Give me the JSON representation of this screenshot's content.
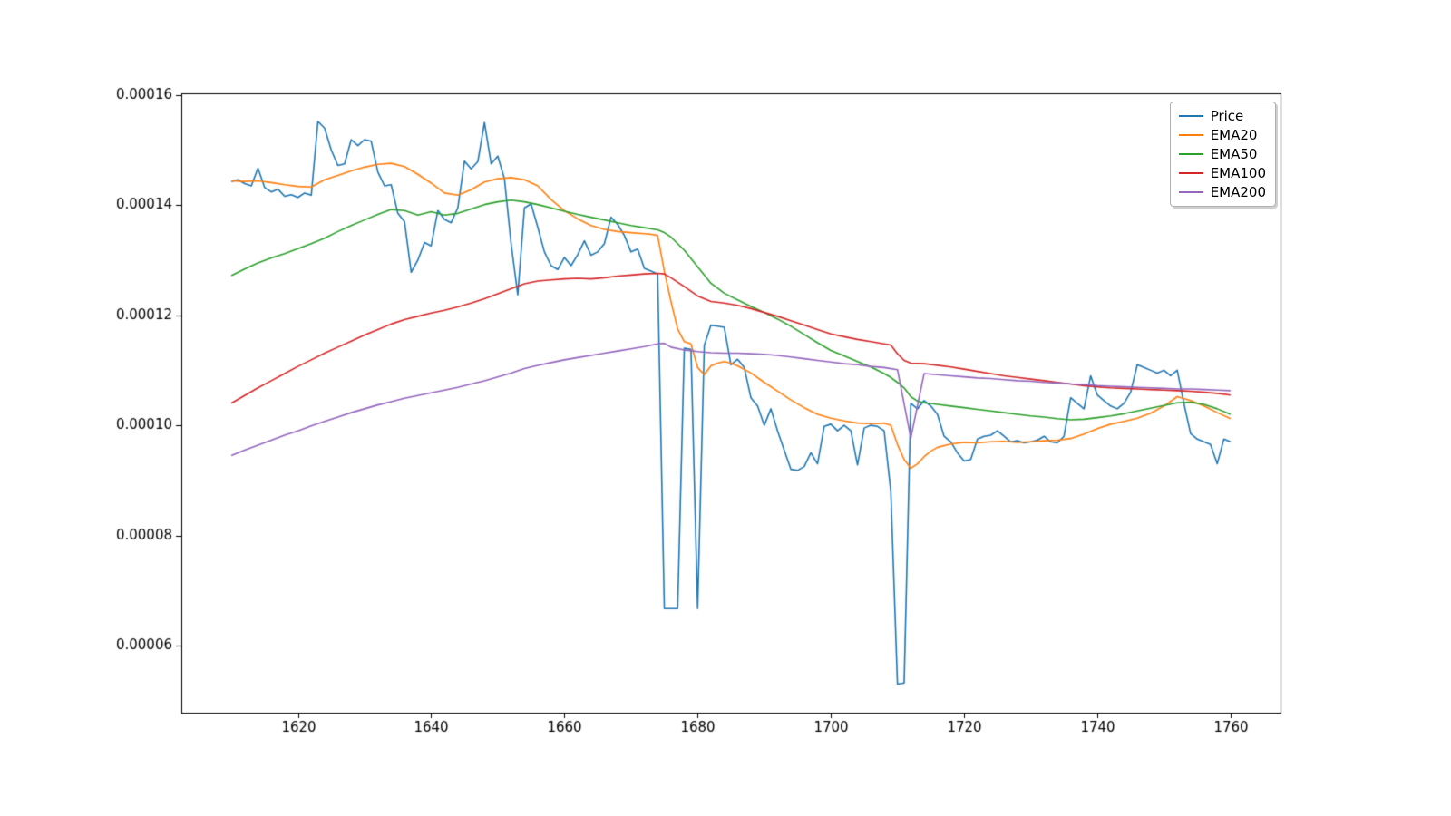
{
  "figure": {
    "background": "#ffffff",
    "text_color": "#000000"
  },
  "chart_data": {
    "type": "line",
    "title": "",
    "xlabel": "",
    "ylabel": "",
    "grid": false,
    "xlim": [
      1602.5,
      1767.5
    ],
    "ylim": [
      4.78e-05,
      0.0001603
    ],
    "x_ticks": [
      1620,
      1640,
      1660,
      1680,
      1700,
      1720,
      1740,
      1760
    ],
    "x_tick_labels": [
      "1620",
      "1640",
      "1660",
      "1680",
      "1700",
      "1720",
      "1740",
      "1760"
    ],
    "y_ticks": [
      6e-05,
      8e-05,
      0.0001,
      0.00012,
      0.00014,
      0.00016
    ],
    "y_tick_labels": [
      "0.00006",
      "0.00008",
      "0.00010",
      "0.00012",
      "0.00014",
      "0.00016"
    ],
    "legend": {
      "position": "upper-right",
      "entries": [
        "Price",
        "EMA20",
        "EMA50",
        "EMA100",
        "EMA200"
      ]
    },
    "series": [
      {
        "name": "Price",
        "color": "#1f77b4",
        "x_range": [
          1610,
          1760,
          1
        ],
        "y": [
          0.0001443,
          0.0001446,
          0.0001439,
          0.0001435,
          0.0001467,
          0.0001432,
          0.0001424,
          0.0001429,
          0.0001416,
          0.0001419,
          0.0001414,
          0.0001422,
          0.0001418,
          0.0001552,
          0.000154,
          0.00015,
          0.0001472,
          0.0001475,
          0.0001519,
          0.0001508,
          0.0001519,
          0.0001516,
          0.000146,
          0.0001435,
          0.0001437,
          0.0001385,
          0.000137,
          0.0001278,
          0.00013,
          0.0001332,
          0.0001326,
          0.000139,
          0.0001374,
          0.0001368,
          0.0001395,
          0.000148,
          0.0001466,
          0.0001479,
          0.000155,
          0.0001475,
          0.0001489,
          0.0001448,
          0.000133,
          0.0001237,
          0.0001395,
          0.0001402,
          0.000136,
          0.0001315,
          0.000129,
          0.0001283,
          0.0001305,
          0.000129,
          0.000131,
          0.0001335,
          0.0001309,
          0.0001315,
          0.000133,
          0.0001378,
          0.0001365,
          0.0001345,
          0.0001315,
          0.000132,
          0.0001285,
          0.000128,
          0.0001275,
          6.67e-05,
          6.67e-05,
          6.67e-05,
          0.000114,
          0.0001138,
          6.67e-05,
          0.0001145,
          0.0001182,
          0.000118,
          0.0001178,
          0.000111,
          0.000112,
          0.0001105,
          0.000105,
          0.0001035,
          0.0001,
          0.000103,
          9.9e-05,
          9.55e-05,
          9.2e-05,
          9.18e-05,
          9.25e-05,
          9.5e-05,
          9.3e-05,
          9.98e-05,
          0.0001002,
          9.9e-05,
          0.0001,
          9.9e-05,
          9.28e-05,
          9.95e-05,
          0.0001,
          9.98e-05,
          9.9e-05,
          8.8e-05,
          5.3e-05,
          5.32e-05,
          0.000104,
          0.000103,
          0.0001045,
          0.0001035,
          0.000102,
          9.8e-05,
          9.7e-05,
          9.5e-05,
          9.35e-05,
          9.38e-05,
          9.75e-05,
          9.8e-05,
          9.82e-05,
          9.9e-05,
          9.8e-05,
          9.7e-05,
          9.72e-05,
          9.68e-05,
          9.7e-05,
          9.73e-05,
          9.8e-05,
          9.7e-05,
          9.68e-05,
          9.8e-05,
          0.000105,
          0.000104,
          0.000103,
          0.000109,
          0.0001055,
          0.0001045,
          0.0001035,
          0.000103,
          0.000104,
          0.000106,
          0.000111,
          0.0001105,
          0.00011,
          0.0001095,
          0.00011,
          0.000109,
          0.00011,
          0.000104,
          9.85e-05,
          9.75e-05,
          9.7e-05,
          9.65e-05,
          9.3e-05,
          9.75e-05,
          9.7e-05
        ]
      },
      {
        "name": "EMA20",
        "color": "#ff7f0e",
        "x": [
          1610,
          1612,
          1614,
          1616,
          1618,
          1620,
          1622,
          1624,
          1626,
          1628,
          1630,
          1632,
          1634,
          1636,
          1638,
          1640,
          1642,
          1644,
          1646,
          1648,
          1650,
          1652,
          1654,
          1656,
          1658,
          1660,
          1662,
          1664,
          1666,
          1668,
          1670,
          1672,
          1673,
          1674,
          1675,
          1676,
          1677,
          1678,
          1679,
          1680,
          1681,
          1682,
          1683,
          1684,
          1685,
          1686,
          1688,
          1690,
          1692,
          1694,
          1696,
          1698,
          1700,
          1702,
          1704,
          1706,
          1707,
          1708,
          1709,
          1710,
          1711,
          1712,
          1713,
          1714,
          1715,
          1716,
          1718,
          1720,
          1722,
          1724,
          1726,
          1728,
          1730,
          1732,
          1734,
          1736,
          1738,
          1740,
          1742,
          1744,
          1746,
          1748,
          1750,
          1752,
          1754,
          1756,
          1758,
          1760
        ],
        "y": [
          0.0001444,
          0.0001443,
          0.0001444,
          0.0001441,
          0.0001437,
          0.0001434,
          0.0001433,
          0.0001446,
          0.0001454,
          0.0001462,
          0.0001469,
          0.0001474,
          0.0001476,
          0.000147,
          0.0001456,
          0.000144,
          0.0001422,
          0.0001418,
          0.0001428,
          0.0001442,
          0.0001448,
          0.000145,
          0.0001446,
          0.0001435,
          0.000141,
          0.000139,
          0.0001375,
          0.0001363,
          0.0001356,
          0.0001352,
          0.000135,
          0.0001348,
          0.0001347,
          0.0001345,
          0.000128,
          0.0001225,
          0.0001175,
          0.0001152,
          0.0001148,
          0.0001105,
          0.0001092,
          0.0001108,
          0.0001113,
          0.0001116,
          0.0001113,
          0.0001108,
          0.0001095,
          0.0001078,
          0.0001062,
          0.0001046,
          0.0001032,
          0.000102,
          0.0001013,
          0.0001008,
          0.0001004,
          0.0001003,
          0.0001003,
          0.0001004,
          0.0001,
          9.65e-05,
          9.38e-05,
          9.22e-05,
          9.3e-05,
          9.43e-05,
          9.53e-05,
          9.6e-05,
          9.66e-05,
          9.69e-05,
          9.68e-05,
          9.7e-05,
          9.71e-05,
          9.69e-05,
          9.7e-05,
          9.72e-05,
          9.73e-05,
          9.76e-05,
          9.84e-05,
          9.94e-05,
          0.0001002,
          0.0001007,
          0.0001013,
          0.0001022,
          0.0001035,
          0.0001052,
          0.0001045,
          0.0001035,
          0.0001023,
          0.0001012
        ]
      },
      {
        "name": "EMA50",
        "color": "#2ca02c",
        "x": [
          1610,
          1612,
          1614,
          1616,
          1618,
          1620,
          1622,
          1624,
          1626,
          1628,
          1630,
          1632,
          1634,
          1636,
          1638,
          1640,
          1642,
          1644,
          1646,
          1648,
          1650,
          1652,
          1654,
          1656,
          1658,
          1660,
          1662,
          1664,
          1666,
          1668,
          1670,
          1672,
          1674,
          1675,
          1676,
          1678,
          1680,
          1682,
          1684,
          1686,
          1688,
          1690,
          1692,
          1694,
          1696,
          1698,
          1700,
          1702,
          1704,
          1706,
          1708,
          1709,
          1710,
          1711,
          1712,
          1713,
          1714,
          1716,
          1718,
          1720,
          1722,
          1724,
          1726,
          1728,
          1730,
          1732,
          1734,
          1736,
          1738,
          1740,
          1742,
          1744,
          1746,
          1748,
          1750,
          1752,
          1754,
          1756,
          1758,
          1760
        ],
        "y": [
          0.0001272,
          0.0001284,
          0.0001295,
          0.0001304,
          0.0001312,
          0.0001321,
          0.000133,
          0.000134,
          0.0001352,
          0.0001363,
          0.0001373,
          0.0001383,
          0.0001392,
          0.000139,
          0.0001382,
          0.0001388,
          0.0001382,
          0.0001385,
          0.0001393,
          0.0001401,
          0.0001406,
          0.0001409,
          0.0001406,
          0.0001401,
          0.0001395,
          0.0001389,
          0.0001383,
          0.0001378,
          0.0001373,
          0.0001368,
          0.0001363,
          0.0001359,
          0.0001355,
          0.000135,
          0.0001342,
          0.0001318,
          0.0001288,
          0.0001258,
          0.000124,
          0.0001228,
          0.0001216,
          0.0001205,
          0.0001193,
          0.000118,
          0.0001165,
          0.000115,
          0.0001136,
          0.0001126,
          0.0001116,
          0.0001106,
          0.0001094,
          0.0001087,
          0.0001078,
          0.0001068,
          0.0001052,
          0.0001044,
          0.0001041,
          0.0001038,
          0.0001035,
          0.0001032,
          0.0001029,
          0.0001026,
          0.0001023,
          0.000102,
          0.0001017,
          0.0001015,
          0.0001012,
          0.000101,
          0.0001011,
          0.0001014,
          0.0001017,
          0.0001021,
          0.0001026,
          0.0001031,
          0.0001036,
          0.0001041,
          0.0001042,
          0.0001038,
          0.000103,
          0.000102
        ]
      },
      {
        "name": "EMA100",
        "color": "#d62728",
        "x": [
          1610,
          1612,
          1614,
          1616,
          1618,
          1620,
          1622,
          1624,
          1626,
          1628,
          1630,
          1632,
          1634,
          1636,
          1638,
          1640,
          1642,
          1644,
          1646,
          1648,
          1650,
          1652,
          1654,
          1656,
          1658,
          1660,
          1662,
          1664,
          1666,
          1668,
          1670,
          1672,
          1674,
          1675,
          1676,
          1678,
          1680,
          1682,
          1684,
          1686,
          1688,
          1690,
          1692,
          1694,
          1696,
          1698,
          1700,
          1702,
          1704,
          1706,
          1708,
          1709,
          1710,
          1711,
          1712,
          1714,
          1716,
          1718,
          1720,
          1722,
          1724,
          1726,
          1728,
          1730,
          1732,
          1734,
          1736,
          1738,
          1740,
          1742,
          1744,
          1746,
          1748,
          1750,
          1752,
          1754,
          1756,
          1758,
          1760
        ],
        "y": [
          0.000104,
          0.0001054,
          0.0001068,
          0.0001081,
          0.0001094,
          0.0001107,
          0.0001119,
          0.0001131,
          0.0001142,
          0.0001153,
          0.0001164,
          0.0001174,
          0.0001184,
          0.0001192,
          0.0001198,
          0.0001204,
          0.0001209,
          0.0001215,
          0.0001222,
          0.000123,
          0.0001239,
          0.0001248,
          0.0001257,
          0.0001262,
          0.0001264,
          0.0001266,
          0.0001267,
          0.0001266,
          0.0001268,
          0.0001271,
          0.0001273,
          0.0001275,
          0.0001276,
          0.0001275,
          0.0001268,
          0.0001252,
          0.0001235,
          0.0001225,
          0.0001222,
          0.0001218,
          0.0001212,
          0.0001205,
          0.0001198,
          0.000119,
          0.0001182,
          0.0001174,
          0.0001166,
          0.0001161,
          0.0001156,
          0.0001152,
          0.0001148,
          0.0001146,
          0.000113,
          0.0001118,
          0.0001113,
          0.0001112,
          0.0001109,
          0.0001106,
          0.0001102,
          0.0001098,
          0.0001094,
          0.000109,
          0.0001087,
          0.0001084,
          0.0001081,
          0.0001078,
          0.0001075,
          0.0001072,
          0.000107,
          0.0001068,
          0.0001067,
          0.0001066,
          0.0001065,
          0.0001064,
          0.0001063,
          0.0001062,
          0.000106,
          0.0001058,
          0.0001055
        ]
      },
      {
        "name": "EMA200",
        "color": "#9467bd",
        "x": [
          1610,
          1612,
          1614,
          1616,
          1618,
          1620,
          1622,
          1624,
          1626,
          1628,
          1630,
          1632,
          1634,
          1636,
          1638,
          1640,
          1642,
          1644,
          1646,
          1648,
          1650,
          1652,
          1654,
          1656,
          1658,
          1660,
          1662,
          1664,
          1666,
          1668,
          1670,
          1672,
          1674,
          1675,
          1676,
          1678,
          1680,
          1682,
          1684,
          1686,
          1688,
          1690,
          1692,
          1694,
          1696,
          1698,
          1700,
          1702,
          1704,
          1706,
          1708,
          1710,
          1712,
          1714,
          1716,
          1718,
          1720,
          1722,
          1724,
          1726,
          1728,
          1730,
          1732,
          1734,
          1736,
          1738,
          1740,
          1742,
          1744,
          1746,
          1748,
          1750,
          1752,
          1754,
          1756,
          1758,
          1760
        ],
        "y": [
          9.45e-05,
          9.55e-05,
          9.64e-05,
          9.73e-05,
          9.82e-05,
          9.9e-05,
          9.99e-05,
          0.0001007,
          0.0001015,
          0.0001023,
          0.000103,
          0.0001037,
          0.0001043,
          0.0001049,
          0.0001054,
          0.0001059,
          0.0001064,
          0.0001069,
          0.0001075,
          0.0001081,
          0.0001088,
          0.0001095,
          0.0001103,
          0.0001109,
          0.0001114,
          0.0001119,
          0.0001123,
          0.0001127,
          0.0001131,
          0.0001135,
          0.0001139,
          0.0001143,
          0.0001148,
          0.0001149,
          0.0001142,
          0.0001137,
          0.0001134,
          0.0001132,
          0.0001131,
          0.0001131,
          0.000113,
          0.0001129,
          0.0001127,
          0.0001124,
          0.0001121,
          0.0001118,
          0.0001115,
          0.0001112,
          0.000111,
          0.0001107,
          0.0001105,
          0.0001101,
          9.77e-05,
          0.0001094,
          0.0001092,
          0.000109,
          0.0001088,
          0.0001086,
          0.0001085,
          0.0001083,
          0.0001081,
          0.000108,
          0.0001078,
          0.0001077,
          0.0001075,
          0.0001074,
          0.0001072,
          0.0001071,
          0.000107,
          0.0001069,
          0.0001068,
          0.0001067,
          0.0001066,
          0.0001066,
          0.0001065,
          0.0001064,
          0.0001063
        ]
      }
    ]
  }
}
